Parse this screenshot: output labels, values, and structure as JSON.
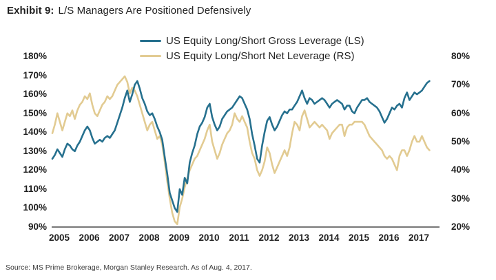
{
  "title": {
    "exhibit_label": "Exhibit 9:",
    "text": "L/S Managers Are Positioned Defensively"
  },
  "source": "Source: MS Prime Brokerage, Morgan Stanley Research. As of Aug. 4, 2017.",
  "colors": {
    "gross_line": "#26708e",
    "net_line": "#e2cb92",
    "axis_line": "#262626",
    "text": "#1f1f1f"
  },
  "chart_data": {
    "type": "line",
    "x_unit": "month",
    "x_start": "2005-01",
    "x_end": "2017-08",
    "x_tick_labels": [
      "2005",
      "2006",
      "2007",
      "2008",
      "2009",
      "2010",
      "2011",
      "2012",
      "2013",
      "2014",
      "2015",
      "2016",
      "2017"
    ],
    "grid": false,
    "legend_position": "top-center",
    "left_axis": {
      "min": 90,
      "max": 180,
      "tick_labels": [
        "180%",
        "170%",
        "160%",
        "150%",
        "140%",
        "130%",
        "120%",
        "110%",
        "100%",
        "90%"
      ]
    },
    "right_axis": {
      "min": 20,
      "max": 80,
      "tick_labels": [
        "80%",
        "70%",
        "60%",
        "50%",
        "40%",
        "30%",
        "20%"
      ]
    },
    "series": [
      {
        "name": "US Equity Long/Short Gross Leverage (LS)",
        "axis": "left",
        "color_key": "gross_line",
        "values": [
          126,
          128,
          131,
          129,
          127,
          131,
          134,
          133,
          131,
          130,
          133,
          135,
          138,
          141,
          143,
          141,
          137,
          134,
          135,
          136,
          135,
          137,
          138,
          137,
          139,
          141,
          145,
          149,
          153,
          158,
          162,
          156,
          160,
          165,
          167,
          163,
          158,
          155,
          151,
          149,
          150,
          147,
          143,
          140,
          136,
          127,
          118,
          108,
          104,
          100,
          98,
          110,
          107,
          116,
          113,
          124,
          129,
          133,
          139,
          143,
          145,
          148,
          153,
          155,
          148,
          144,
          141,
          143,
          147,
          149,
          151,
          152,
          153,
          155,
          157,
          159,
          158,
          155,
          152,
          147,
          139,
          133,
          126,
          124,
          133,
          140,
          146,
          148,
          144,
          141,
          143,
          146,
          149,
          151,
          150,
          152,
          152,
          154,
          156,
          159,
          162,
          158,
          155,
          158,
          157,
          155,
          156,
          157,
          158,
          157,
          155,
          153,
          155,
          156,
          157,
          156,
          155,
          152,
          154,
          154,
          151,
          150,
          153,
          155,
          157,
          157,
          158,
          156,
          155,
          154,
          153,
          151,
          148,
          145,
          147,
          150,
          153,
          152,
          154,
          155,
          153,
          158,
          161,
          157,
          159,
          161,
          160,
          161,
          162,
          164,
          166,
          167
        ]
      },
      {
        "name": "US Equity Long/Short Net Leverage (RS)",
        "axis": "right",
        "color_key": "net_line",
        "values": [
          53,
          56,
          60,
          57,
          54,
          57,
          60,
          59,
          61,
          58,
          61,
          63,
          64,
          66,
          65,
          67,
          63,
          60,
          59,
          61,
          63,
          64,
          66,
          65,
          66,
          68,
          70,
          71,
          72,
          73,
          71,
          67,
          69,
          68,
          66,
          63,
          60,
          57,
          54,
          56,
          57,
          54,
          51,
          52,
          49,
          43,
          36,
          30,
          25,
          22,
          21,
          27,
          30,
          34,
          37,
          40,
          42,
          44,
          45,
          47,
          49,
          51,
          54,
          56,
          50,
          47,
          44,
          46,
          49,
          51,
          53,
          54,
          56,
          60,
          58,
          57,
          59,
          57,
          55,
          50,
          46,
          44,
          40,
          38,
          40,
          43,
          48,
          46,
          42,
          39,
          41,
          43,
          45,
          47,
          45,
          48,
          53,
          57,
          56,
          54,
          59,
          61,
          58,
          55,
          56,
          57,
          56,
          55,
          56,
          55,
          54,
          51,
          53,
          54,
          55,
          56,
          56,
          52,
          55,
          56,
          56,
          57,
          57,
          57,
          57,
          56,
          54,
          52,
          51,
          50,
          49,
          48,
          47,
          45,
          44,
          45,
          44,
          42,
          40,
          45,
          47,
          47,
          45,
          47,
          50,
          52,
          50,
          50,
          52,
          50,
          48,
          47
        ]
      }
    ]
  }
}
